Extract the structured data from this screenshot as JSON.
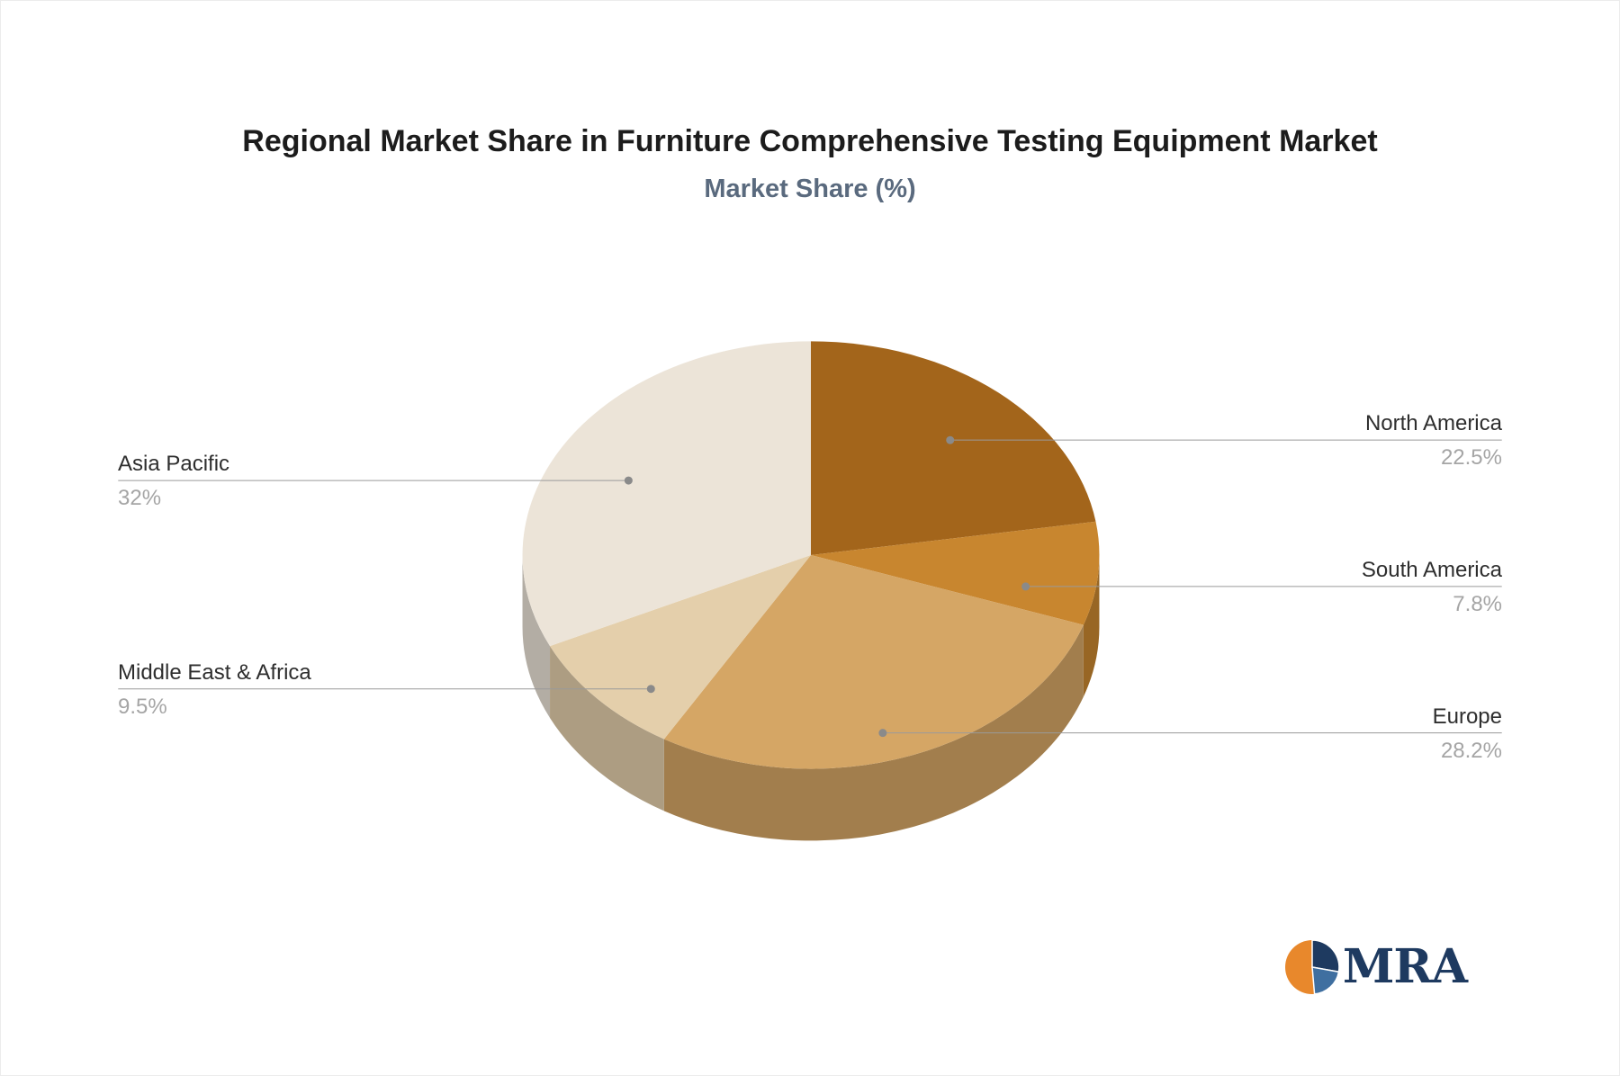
{
  "title": "Regional Market Share in Furniture Comprehensive Testing Equipment Market",
  "subtitle": "Market Share (%)",
  "chart_data": {
    "type": "pie",
    "style": "3d",
    "title": "Regional Market Share in Furniture Comprehensive Testing Equipment Market",
    "subtitle": "Market Share (%)",
    "unit": "%",
    "start_angle_deg": 0,
    "direction": "clockwise",
    "legend_position": "callout-labels",
    "slices": [
      {
        "label": "North America",
        "value": 22.5,
        "display": "22.5%",
        "color": "#a3651b"
      },
      {
        "label": "South America",
        "value": 7.8,
        "display": "7.8%",
        "color": "#c8862f"
      },
      {
        "label": "Europe",
        "value": 28.2,
        "display": "28.2%",
        "color": "#d5a665"
      },
      {
        "label": "Middle East & Africa",
        "value": 9.5,
        "display": "9.5%",
        "color": "#e4cfab"
      },
      {
        "label": "Asia Pacific",
        "value": 32,
        "display": "32%",
        "color": "#ece4d8"
      }
    ],
    "label_text_color": "#2e2e2e",
    "value_text_color": "#a5a5a5",
    "leader_line_color": "#9a9a9a"
  },
  "logo": {
    "text": "MRA",
    "navy": "#1e3a60",
    "orange": "#e8882c",
    "blue": "#3f6fa0"
  }
}
